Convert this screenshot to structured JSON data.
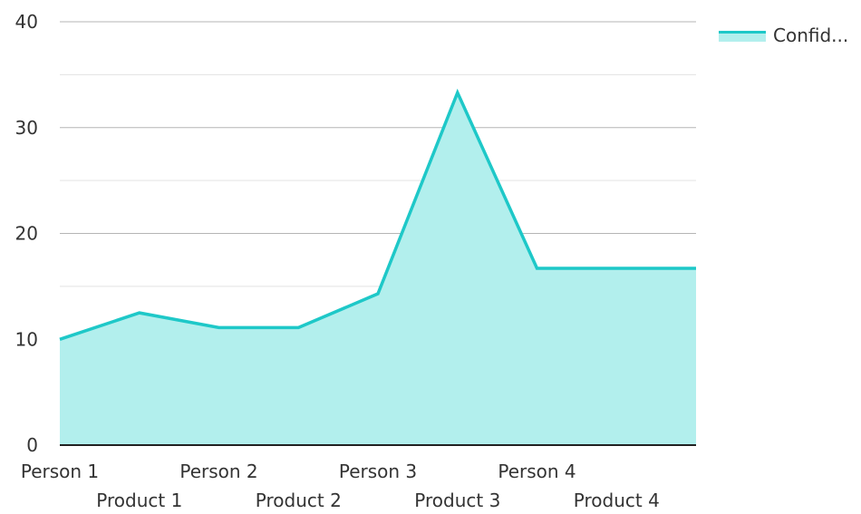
{
  "chart_data": {
    "type": "area",
    "categories": [
      "Person 1",
      "Product 1",
      "Person 2",
      "Product 2",
      "Person 3",
      "Product 3",
      "Person 4",
      "Product 4"
    ],
    "series": [
      {
        "name": "Confid...",
        "values": [
          10,
          12.5,
          11.1,
          11.1,
          14.3,
          33.3,
          16.7,
          16.7
        ]
      }
    ],
    "yticks": [
      0,
      10,
      20,
      30,
      40
    ],
    "ylim": [
      0,
      40
    ],
    "grid": true,
    "legend_position": "top-right",
    "title": "",
    "xlabel": "",
    "ylabel": ""
  },
  "colors": {
    "line": "#1ec8c8",
    "fill": "#b2efed",
    "grid_major": "#b5b5b5",
    "grid_minor": "#e3e3e3",
    "axis": "#222222",
    "text": "#333333"
  }
}
